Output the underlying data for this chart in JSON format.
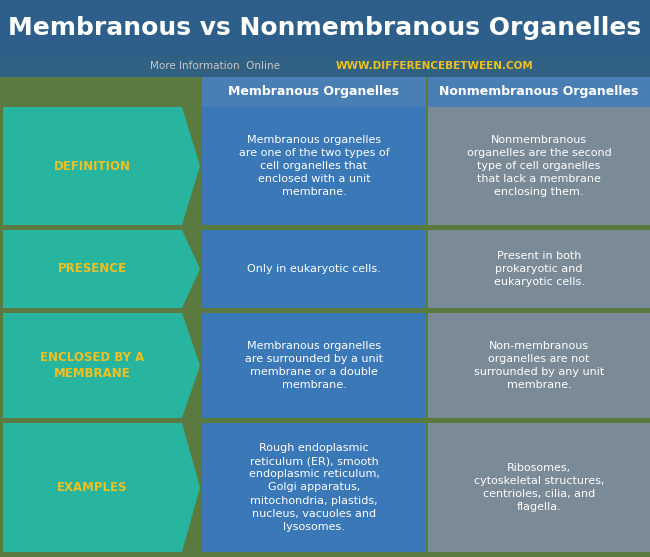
{
  "title": "Membranous vs Nonmembranous Organelles",
  "subtitle_gray": "More Information  Online",
  "subtitle_yellow": "WWW.DIFFERENCEBETWEEN.COM",
  "col1_header": "Membranous Organelles",
  "col2_header": "Nonmembranous Organelles",
  "rows": [
    {
      "label": "DEFINITION",
      "col1": "Membranous organelles\nare one of the two types of\ncell organelles that\nenclosed with a unit\nmembrane.",
      "col2": "Nonmembranous\norganelles are the second\ntype of cell organelles\nthat lack a membrane\nenclosing them."
    },
    {
      "label": "PRESENCE",
      "col1": "Only in eukaryotic cells.",
      "col2": "Present in both\nprokaryotic and\neukaryotic cells."
    },
    {
      "label": "ENCLOSED BY A\nMEMBRANE",
      "col1": "Membranous organelles\nare surrounded by a unit\nmembrane or a double\nmembrane.",
      "col2": "Non-membranous\norganelles are not\nsurrounded by any unit\nmembrane."
    },
    {
      "label": "EXAMPLES",
      "col1": "Rough endoplasmic\nreticulum (ER), smooth\nendoplasmic reticulum,\nGolgi apparatus,\nmitochondria, plastids,\nnucleus, vacuoles and\nlysosomes.",
      "col2": "Ribosomes,\ncytoskeletal structures,\ncentrioles, cilia, and\nflagella."
    }
  ],
  "colors": {
    "title_bg": "#2d5f8a",
    "title_text": "#ffffff",
    "subtitle_gray": "#c8c8c8",
    "subtitle_yellow": "#f0c020",
    "header_bg": "#4a7fb5",
    "header_text": "#ffffff",
    "label_bg": "#28b5a0",
    "label_text": "#f0c020",
    "col1_bg": "#3a78b8",
    "col1_text": "#ffffff",
    "col2_bg": "#7a8a96",
    "col2_text": "#ffffff",
    "background": "#5a7a40"
  },
  "figsize": [
    6.5,
    5.57
  ],
  "dpi": 100
}
